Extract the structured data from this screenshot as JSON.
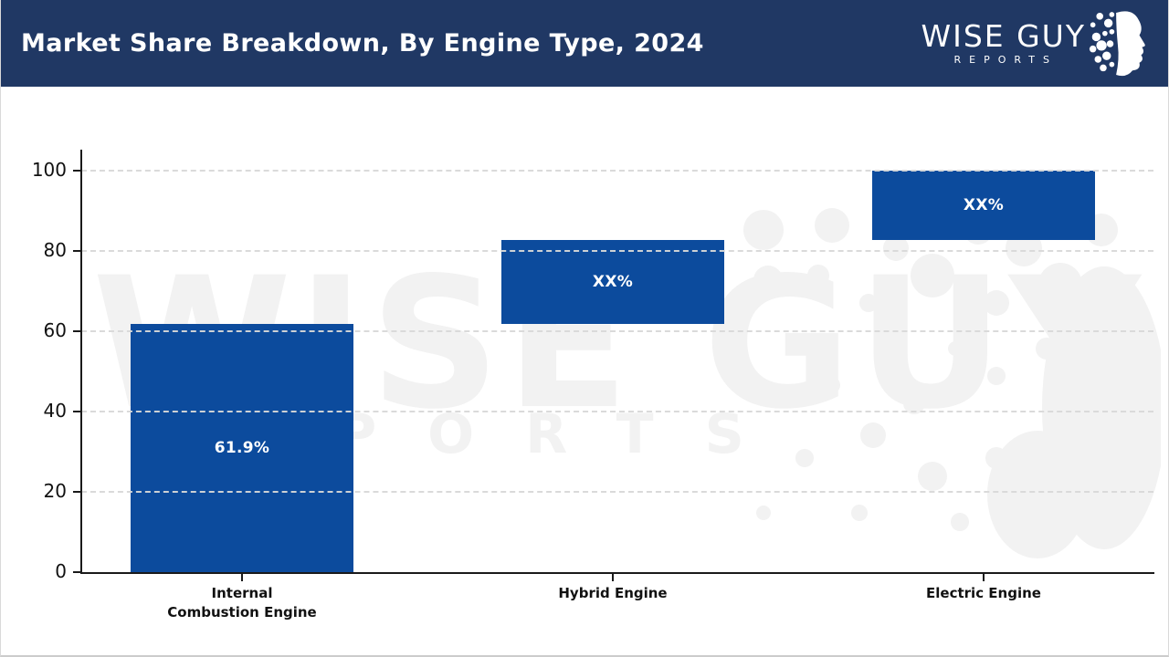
{
  "header": {
    "title": "Market Share Breakdown, By Engine Type, 2024",
    "logo": {
      "brand_line1": "WISE GUY",
      "brand_line2": "REPORTS"
    }
  },
  "watermark": {
    "line1": "WISE GUY",
    "line2": "REPORTS"
  },
  "colors": {
    "header_bg": "#203864",
    "title_text": "#ffffff",
    "bar": "#0c4b9d",
    "bar_label": "#ffffff",
    "grid": "#d9d9d9",
    "axis": "#1a1a1a",
    "watermark": "#f2f2f2"
  },
  "chart_data": {
    "type": "bar",
    "subtype": "stacked-waterfall",
    "title": "Market Share Breakdown, By Engine Type, 2024",
    "xlabel": "",
    "ylabel": "",
    "categories": [
      "Internal\nCombustion Engine",
      "Hybrid Engine",
      "Electric Engine"
    ],
    "segments": [
      {
        "category": "Internal Combustion Engine",
        "start": 0,
        "end": 61.9,
        "label": "61.9%"
      },
      {
        "category": "Hybrid Engine",
        "start": 61.9,
        "end": 82.8,
        "label": "XX%"
      },
      {
        "category": "Electric Engine",
        "start": 82.8,
        "end": 100,
        "label": "XX%"
      }
    ],
    "yticks": [
      0,
      20,
      40,
      60,
      80,
      100
    ],
    "ylim": [
      0,
      100
    ],
    "grid": "horizontal-dashed",
    "legend_position": "none"
  }
}
